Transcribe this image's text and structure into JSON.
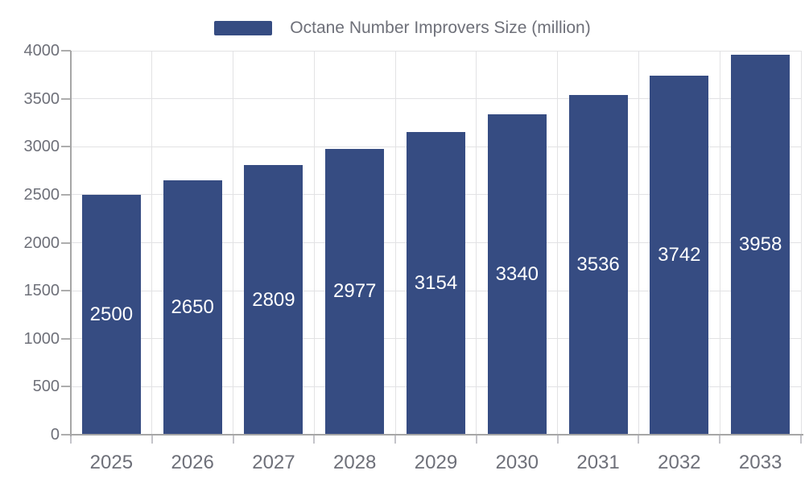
{
  "legend": {
    "label": "Octane Number Improvers Size (million)"
  },
  "chart_data": {
    "type": "bar",
    "title": "",
    "categories": [
      "2025",
      "2026",
      "2027",
      "2028",
      "2029",
      "2030",
      "2031",
      "2032",
      "2033"
    ],
    "series": [
      {
        "name": "Octane Number Improvers Size (million)",
        "values": [
          2500,
          2650,
          2809,
          2977,
          3154,
          3340,
          3536,
          3742,
          3958
        ]
      }
    ],
    "values": [
      2500,
      2650,
      2809,
      2977,
      3154,
      3340,
      3536,
      3742,
      3958
    ],
    "bar_value_labels": [
      "2500",
      "2650",
      "2809",
      "2977",
      "3154",
      "3340",
      "3536",
      "3742",
      "3958"
    ],
    "xlabel": "",
    "ylabel": "",
    "ylim": [
      0,
      4000
    ],
    "yticks": [
      0,
      500,
      1000,
      1500,
      2000,
      2500,
      3000,
      3500,
      4000
    ],
    "ytick_labels": [
      "0",
      "500",
      "1000",
      "1500",
      "2000",
      "2500",
      "3000",
      "3500",
      "4000"
    ],
    "grid": true,
    "legend_position": "top-center",
    "colors": {
      "bar": "#364C82",
      "bar_label": "#FFFFFF",
      "axis_text": "#6E7079",
      "grid_line": "#E2E2E4",
      "axis_line": "#A6A6A6"
    }
  }
}
